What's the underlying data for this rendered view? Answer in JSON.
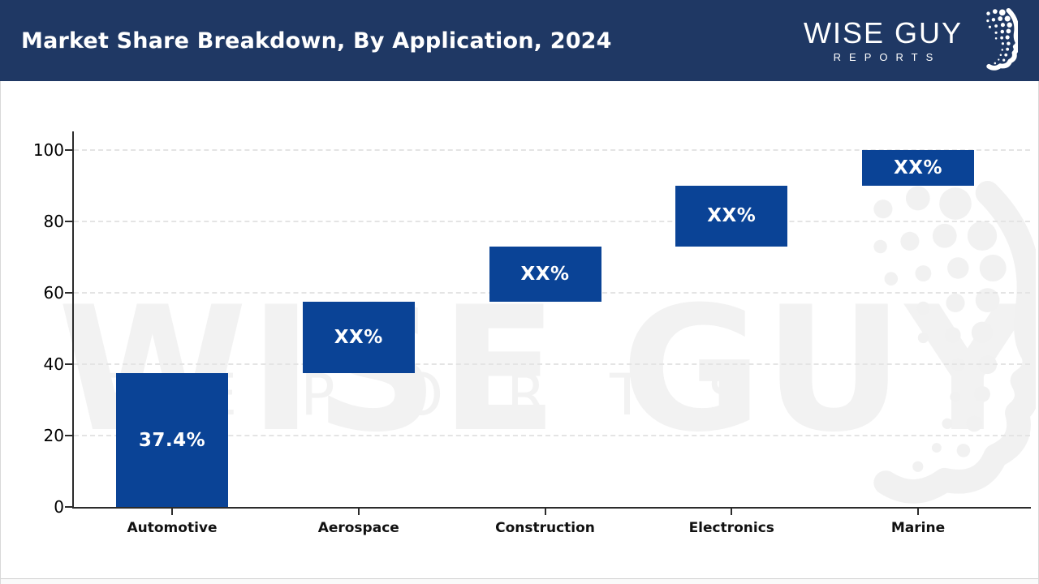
{
  "header": {
    "title": "Market Share Breakdown, By Application, 2024",
    "logo": {
      "line1": "WISE GUY",
      "line2": "REPORTS"
    }
  },
  "watermark": {
    "line1": "WISE GUY",
    "line2": "R E P O R T S"
  },
  "colors": {
    "header_bg": "#1F3864",
    "bar": "#0A4396",
    "grid": "#e4e4e4",
    "axis": "#2b2b2b",
    "watermark": "#f2f2f2",
    "label_text": "#ffffff"
  },
  "chart_data": {
    "type": "bar",
    "subtype": "waterfall",
    "title": "Market Share Breakdown, By Application, 2024",
    "categories": [
      "Automotive",
      "Aerospace",
      "Construction",
      "Electronics",
      "Marine"
    ],
    "segments": [
      {
        "category": "Automotive",
        "start": 0,
        "end": 37.4,
        "value": 37.4,
        "label": "37.4%"
      },
      {
        "category": "Aerospace",
        "start": 37.4,
        "end": 57.4,
        "value": 20,
        "label": "XX%"
      },
      {
        "category": "Construction",
        "start": 57.4,
        "end": 73,
        "value": 15.6,
        "label": "XX%"
      },
      {
        "category": "Electronics",
        "start": 73,
        "end": 90,
        "value": 17,
        "label": "XX%"
      },
      {
        "category": "Marine",
        "start": 90,
        "end": 100,
        "value": 10,
        "label": "XX%"
      }
    ],
    "yticks": [
      0,
      20,
      40,
      60,
      80,
      100
    ],
    "ylim": [
      0,
      105
    ],
    "xlabel": "",
    "ylabel": "",
    "grid": "horizontal-dashed",
    "legend": "none"
  }
}
